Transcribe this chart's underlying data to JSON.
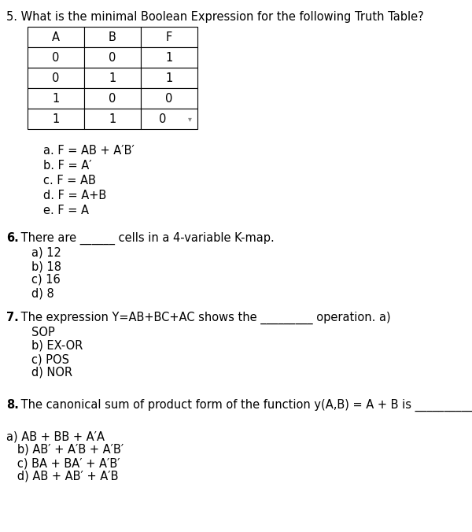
{
  "bg_color": "#ffffff",
  "text_color": "#000000",
  "q5_text": "5. What is the minimal Boolean Expression for the following Truth Table?",
  "table_headers": [
    "A",
    "B",
    "F"
  ],
  "table_rows": [
    [
      "0",
      "0",
      "1"
    ],
    [
      "0",
      "1",
      "1"
    ],
    [
      "1",
      "0",
      "0"
    ],
    [
      "1",
      "1",
      "0"
    ]
  ],
  "q5_options": [
    "a. F = AB + A′B′",
    "b. F = A′",
    "c. F = AB",
    "d. F = A+B",
    "e. F = A"
  ],
  "q6_num": "6.",
  "q6_text": " There are ______ cells in a 4-variable K-map.",
  "q6_options": [
    "a) 12",
    "b) 18",
    "c) 16",
    "d) 8"
  ],
  "q7_num": "7.",
  "q7_text": " The expression Y=AB+BC+AC shows the _________ operation. a)",
  "q7_options": [
    "SOP",
    "b) EX-OR",
    "c) POS",
    "d) NOR"
  ],
  "q8_num": "8.",
  "q8_text": " The canonical sum of product form of the function y(A,B) = A + B is __________",
  "q8_options": [
    "a) AB + BB + A′A",
    "   b) AB′ + A′B + A′B′",
    "   c) BA + BA′ + A′B′",
    "   d) AB + AB′ + A′B"
  ]
}
